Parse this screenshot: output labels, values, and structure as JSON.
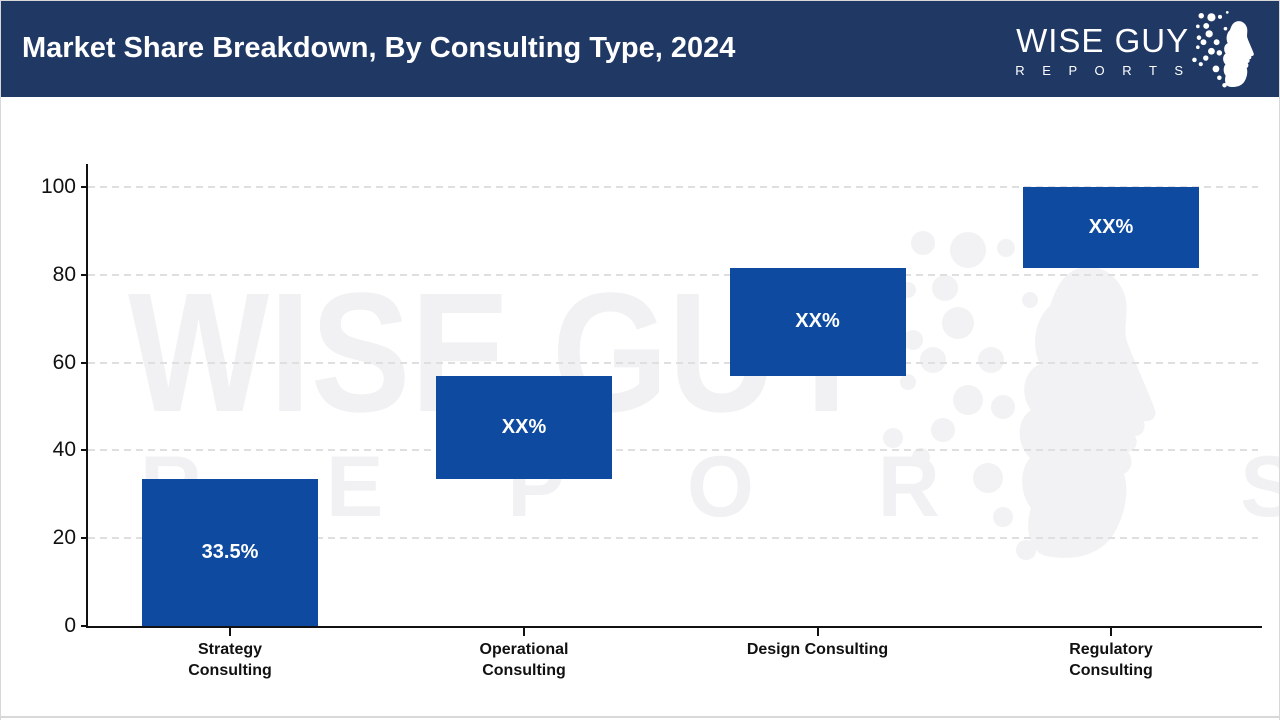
{
  "header": {
    "title": "Market Share Breakdown, By Consulting Type, 2024"
  },
  "logo": {
    "line1": "WISE GUY",
    "line2": "R E P O R T S"
  },
  "watermark": {
    "line1": "WISE GUY",
    "line2": "R E P O R T S"
  },
  "colors": {
    "header_bg": "#203864",
    "bar": "#0d4aa0",
    "grid": "#dfdfdf",
    "axis": "#111111",
    "bar_label": "#ffffff",
    "watermark": "#f1f1f3"
  },
  "chart_data": {
    "type": "bar",
    "subtype": "waterfall",
    "title": "Market Share Breakdown, By Consulting Type, 2024",
    "categories": [
      "Strategy Consulting",
      "Operational Consulting",
      "Design Consulting",
      "Regulatory Consulting"
    ],
    "category_lines": [
      [
        "Strategy",
        "Consulting"
      ],
      [
        "Operational",
        "Consulting"
      ],
      [
        "Design Consulting"
      ],
      [
        "Regulatory",
        "Consulting"
      ]
    ],
    "series": [
      {
        "name": "Market Share",
        "segments": [
          {
            "category": "Strategy Consulting",
            "start": 0,
            "end": 33.5,
            "label": "33.5%"
          },
          {
            "category": "Operational Consulting",
            "start": 33.5,
            "end": 57.0,
            "label": "XX%"
          },
          {
            "category": "Design Consulting",
            "start": 57.0,
            "end": 81.5,
            "label": "XX%"
          },
          {
            "category": "Regulatory Consulting",
            "start": 81.5,
            "end": 100.0,
            "label": "XX%"
          }
        ]
      }
    ],
    "xlabel": "",
    "ylabel": "",
    "ylim": [
      0,
      105
    ],
    "yticks": [
      0,
      20,
      40,
      60,
      80,
      100
    ],
    "grid": "horizontal-dashed",
    "legend": "none"
  }
}
